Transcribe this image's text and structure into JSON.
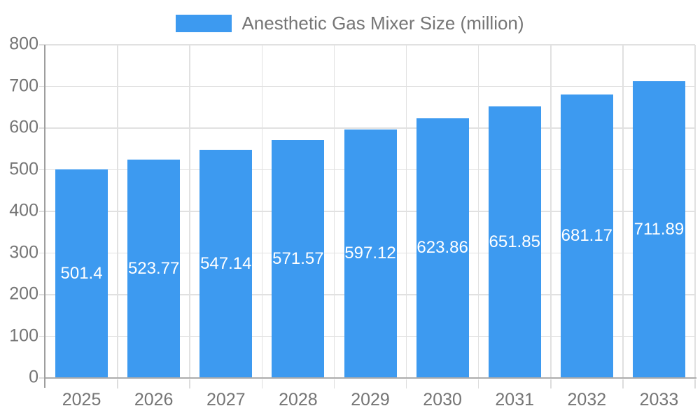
{
  "chart_data": {
    "type": "bar",
    "title": "Anesthetic Gas Mixer Size (million)",
    "xlabel": "",
    "ylabel": "",
    "categories": [
      "2025",
      "2026",
      "2027",
      "2028",
      "2029",
      "2030",
      "2031",
      "2032",
      "2033"
    ],
    "values": [
      501.4,
      523.77,
      547.14,
      571.57,
      597.12,
      623.86,
      651.85,
      681.17,
      711.89
    ],
    "value_labels": [
      "501.4",
      "523.77",
      "547.14",
      "571.57",
      "597.12",
      "623.86",
      "651.85",
      "681.17",
      "711.89"
    ],
    "ylim": [
      0,
      800
    ],
    "yticks": [
      0,
      100,
      200,
      300,
      400,
      500,
      600,
      700,
      800
    ],
    "grid": true,
    "legend_position": "top",
    "colors": {
      "bar": "#3D9AF0",
      "grid": "#E1E1E1",
      "axis": "#9E9E9E",
      "tick_text": "#757575",
      "bar_label_text": "#FFFFFF",
      "background": "#FFFFFF"
    }
  }
}
